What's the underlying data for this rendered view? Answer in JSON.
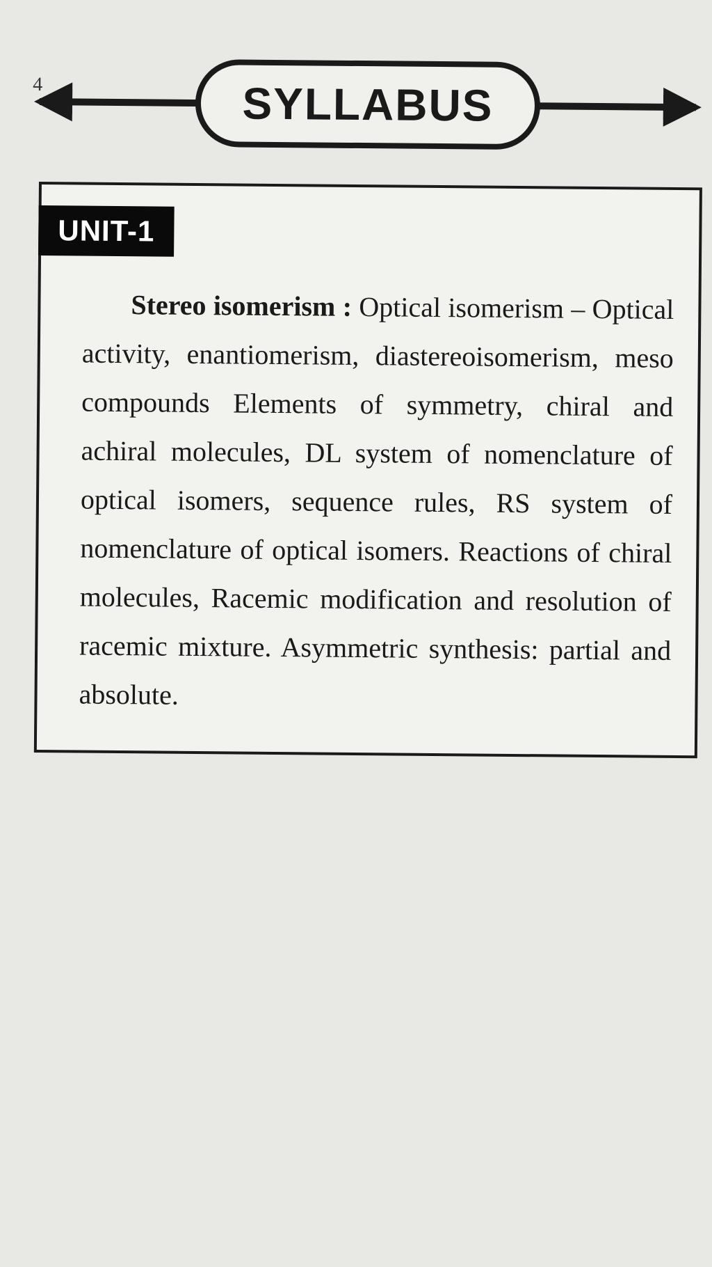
{
  "page_number": "4",
  "header": {
    "title": "SYLLABUS"
  },
  "unit": {
    "badge": "UNIT-1",
    "topic_title": "Stereo isomerism :",
    "topic_body": "Optical isomerism – Optical activity, enantiomerism, diastereoisomerism, meso compounds Elements of symmetry, chiral and achiral molecules, DL system of nomenclature of optical isomers, sequence rules, RS system of nomenclature of optical isomers. Reactions of chiral molecules, Racemic modification and resolution of racemic mixture. Asymmetric synthesis: partial and absolute."
  },
  "styling": {
    "page_bg": "#e8e8e4",
    "text_color": "#1a1a1a",
    "border_color": "#1a1a1a",
    "badge_bg": "#0a0a0a",
    "badge_text": "#ffffff",
    "header_fontsize": 64,
    "body_fontsize": 40,
    "badge_fontsize": 42
  }
}
